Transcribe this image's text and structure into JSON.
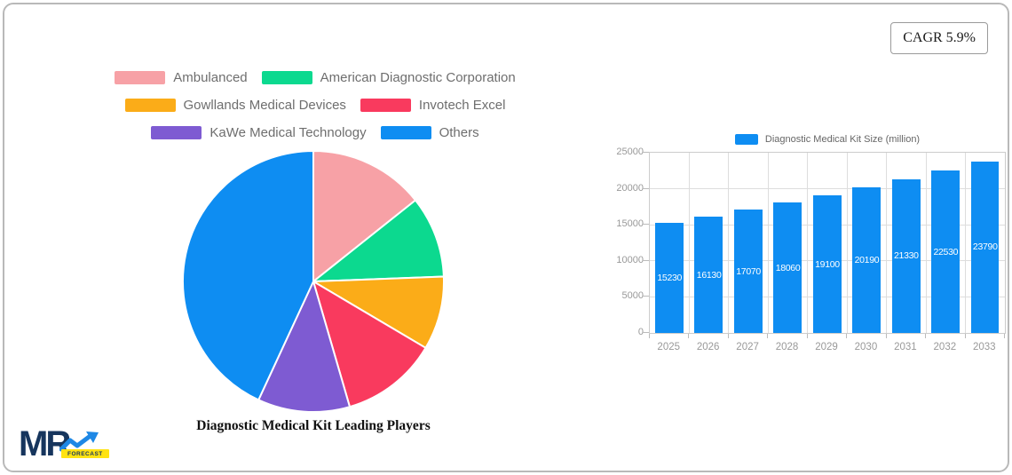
{
  "cagr_badge": "CAGR 5.9%",
  "logo": {
    "text": "MR",
    "badge": "FORECAST",
    "colors": {
      "navy": "#16355d",
      "arrow_blue": "#1e88e5",
      "badge_yellow": "#ffe312"
    }
  },
  "chart_data": [
    {
      "type": "pie",
      "title": "Diagnostic Medical Kit Leading Players",
      "labels": [
        "Ambulanced",
        "American Diagnostic Corporation",
        "Gowllands Medical Devices",
        "Invotech Excel",
        "KaWe Medical Technology",
        "Others"
      ],
      "values": [
        14.3,
        10.1,
        9.1,
        12.0,
        11.4,
        43.1
      ],
      "unit": "percent-share-estimated-from-arc-angles",
      "colors": [
        "#F7A1A6",
        "#0CD98F",
        "#FBAC18",
        "#F93A5E",
        "#7E5BD2",
        "#0E8DF2"
      ],
      "legend_position": "top-center",
      "start_angle": "12-o'clock, clockwise",
      "slice_border_color": "#ffffff"
    },
    {
      "type": "bar",
      "legend": "Diagnostic Medical Kit Size (million)",
      "categories": [
        "2025",
        "2026",
        "2027",
        "2028",
        "2029",
        "2030",
        "2031",
        "2032",
        "2033"
      ],
      "values": [
        15230,
        16130,
        17070,
        18060,
        19100,
        20190,
        21330,
        22530,
        23790
      ],
      "bar_color": "#0E8DF2",
      "value_label_style": "white, horizontal, centered inside bar",
      "ylim": [
        0,
        25000
      ],
      "yticks": [
        0,
        5000,
        10000,
        15000,
        20000,
        25000
      ],
      "grid": true,
      "grid_color": "#dddddd",
      "axis_label_color": "#999999"
    }
  ]
}
